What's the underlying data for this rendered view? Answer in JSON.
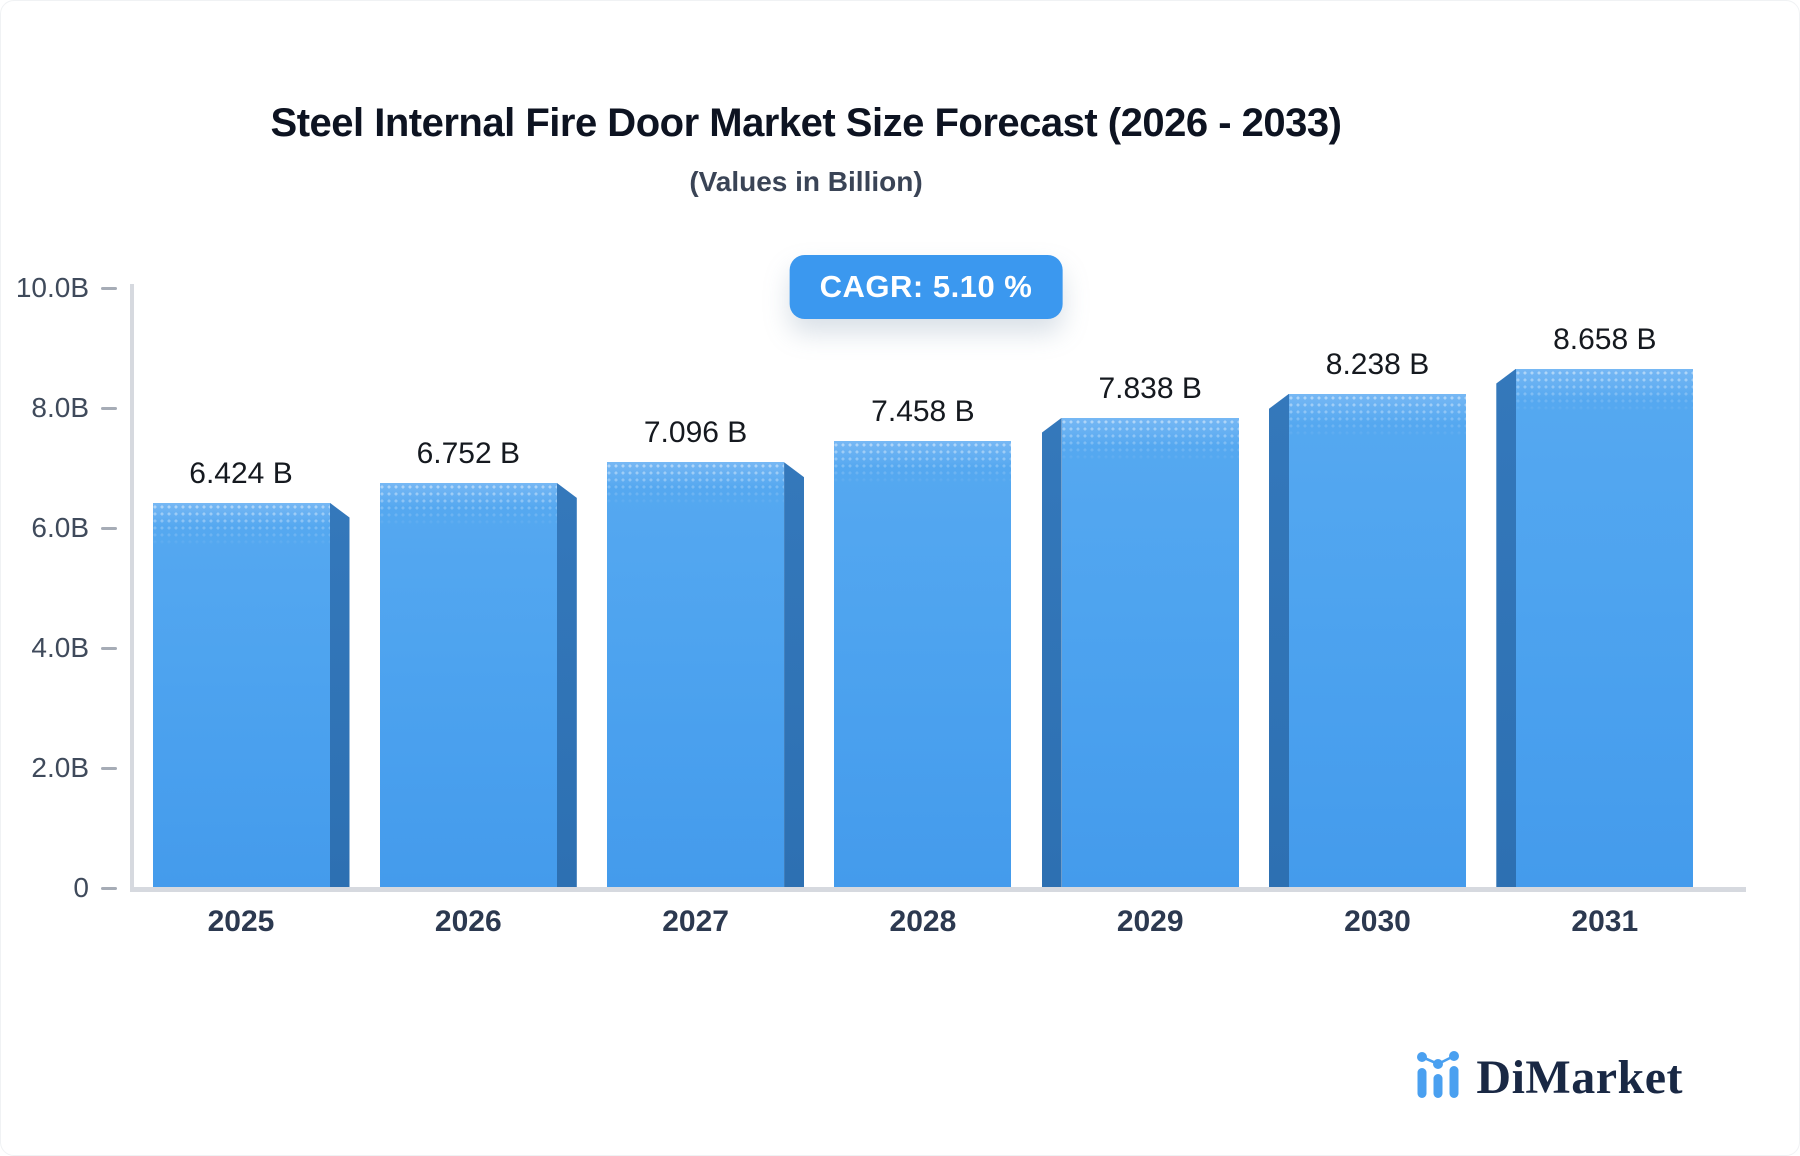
{
  "title": "Steel Internal Fire Door Market Size Forecast (2026 - 2033)",
  "subtitle": "(Values in Billion)",
  "cagr": {
    "label": "CAGR: 5.10 %"
  },
  "chart_data": {
    "type": "bar",
    "title": "Steel Internal Fire Door Market Size Forecast (2026 - 2033)",
    "subtitle": "(Values in Billion)",
    "categories": [
      "2025",
      "2026",
      "2027",
      "2028",
      "2029",
      "2030",
      "2031"
    ],
    "values": [
      6.424,
      6.752,
      7.096,
      7.458,
      7.838,
      8.238,
      8.658
    ],
    "value_labels": [
      "6.424 B",
      "6.752 B",
      "7.096 B",
      "7.458 B",
      "7.838 B",
      "8.238 B",
      "8.658 B"
    ],
    "unit": "Billion",
    "cagr_pct": 5.1,
    "ylim": [
      0,
      10
    ],
    "y_ticks": [
      0,
      2,
      4,
      6,
      8,
      10
    ],
    "y_tick_labels": [
      "0",
      "2.0B",
      "4.0B",
      "6.0B",
      "8.0B",
      "10.0B"
    ],
    "grid": false,
    "legend": false,
    "style": "3d-perspective-bars",
    "bar_color": "#4da3ef",
    "bar_side_color": "#2d70b2",
    "badge_color": "#3b98ef"
  },
  "logo": {
    "text": "DiMarket",
    "icon": "bar-chart-with-trend-dots-icon"
  },
  "colors": {
    "accent_blue": "#3b98ef",
    "axis_line": "#d6d9df",
    "tick_dash": "#a6acb6",
    "title_text": "#0d1321",
    "subtitle_text": "#3a4456",
    "value_label_text": "#15191f",
    "year_label_text": "#2c3950",
    "ytick_text": "#3f4a5b",
    "logo_navy": "#192844",
    "logo_blue": "#4aa0f0"
  }
}
